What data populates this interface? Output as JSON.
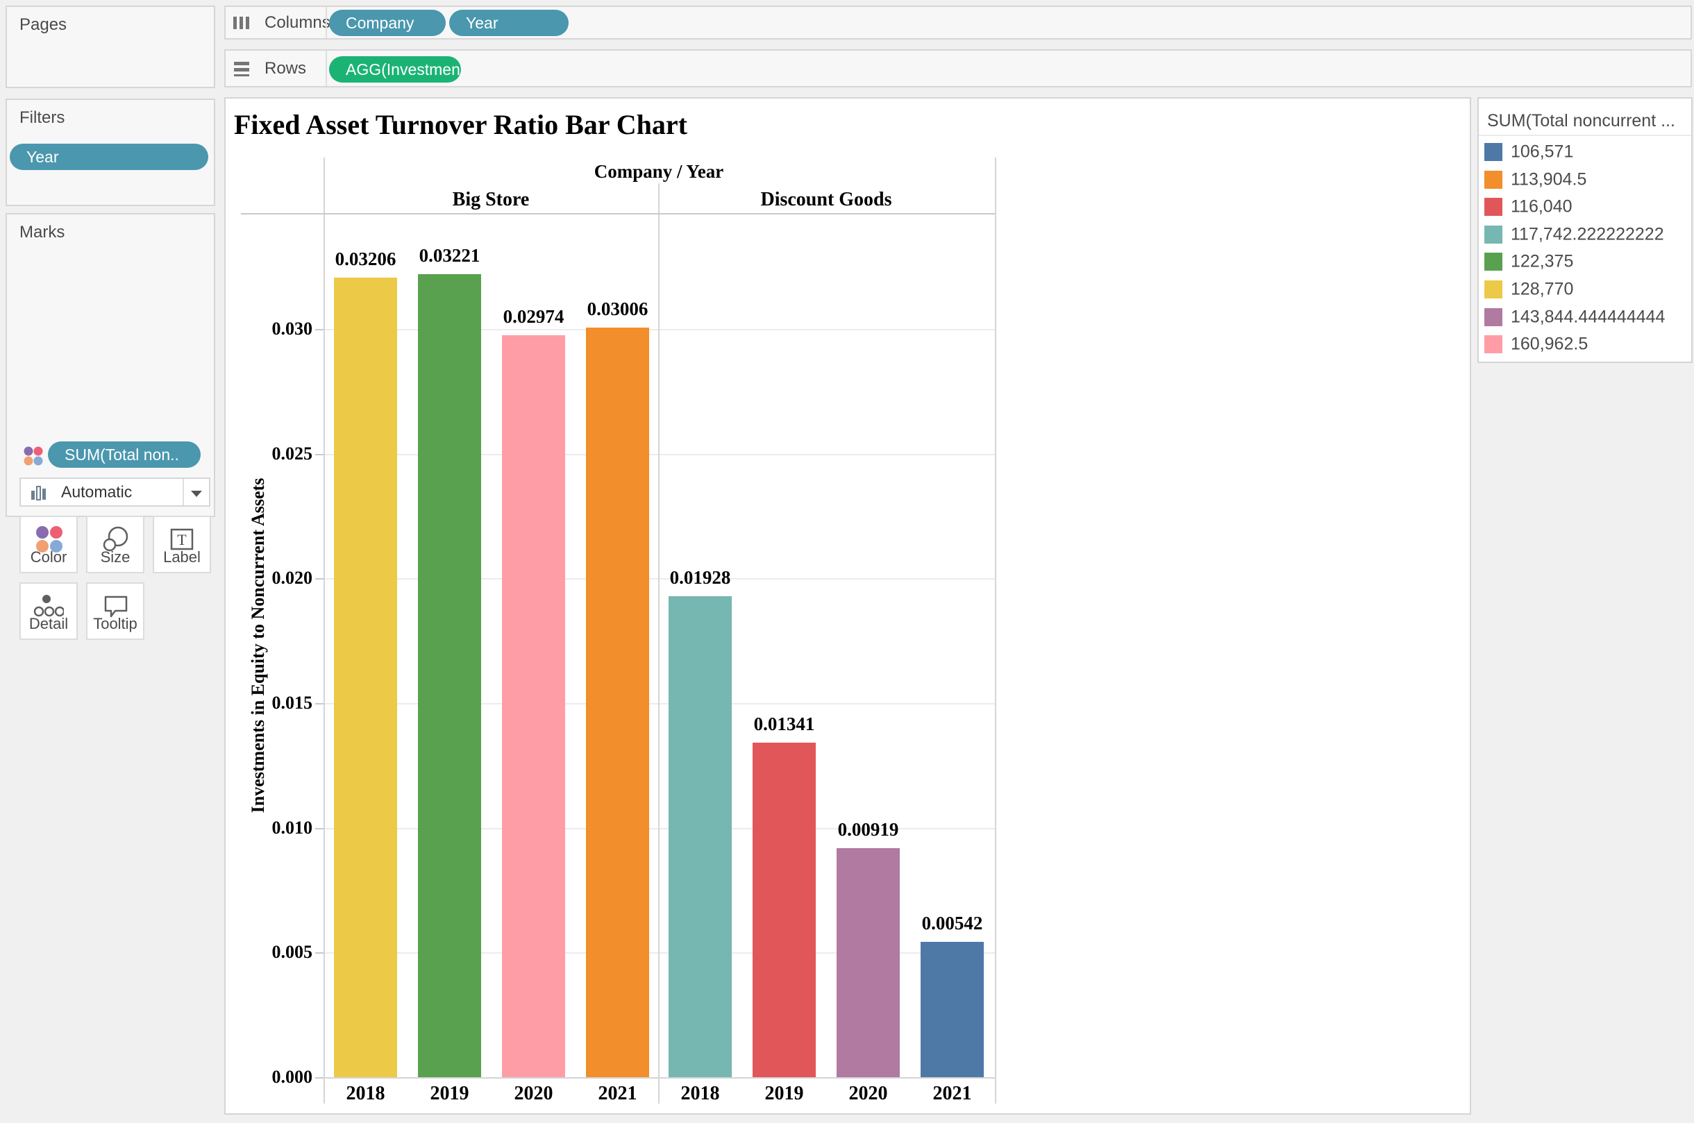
{
  "shelves": {
    "columns": {
      "label": "Columns",
      "pills": [
        {
          "text": "Company"
        },
        {
          "text": "Year"
        }
      ]
    },
    "rows": {
      "label": "Rows",
      "pills": [
        {
          "text": "AGG(Investments in E.."
        }
      ]
    }
  },
  "sidebar": {
    "pages": {
      "title": "Pages"
    },
    "filters": {
      "title": "Filters",
      "pills": [
        {
          "text": "Year"
        }
      ]
    },
    "marks": {
      "title": "Marks",
      "mark_type_label": "Automatic",
      "buttons": [
        {
          "label": "Color"
        },
        {
          "label": "Size"
        },
        {
          "label": "Label"
        },
        {
          "label": "Detail"
        },
        {
          "label": "Tooltip"
        }
      ],
      "pill": {
        "text": "SUM(Total non.."
      }
    }
  },
  "chart_data": {
    "type": "bar",
    "title": "Fixed Asset Turnover Ratio Bar Chart",
    "column_header": "Company / Year",
    "ylabel": "Investments in Equity to Noncurrent Assets",
    "xlabel": "",
    "y_ticks": [
      0.03,
      0.025,
      0.02,
      0.015,
      0.01,
      0.005,
      0.0
    ],
    "ylim": [
      0,
      0.0346
    ],
    "grid": true,
    "legend_position": "right",
    "categories": [
      "2018",
      "2019",
      "2020",
      "2021"
    ],
    "series": [
      {
        "name": "Big Store",
        "values": [
          0.03206,
          0.03221,
          0.02974,
          0.03006
        ],
        "labels": [
          "0.03206",
          "0.03221",
          "0.02974",
          "0.03006"
        ],
        "colors": [
          "#edc948",
          "#59a14f",
          "#ff9da7",
          "#f28e2b"
        ]
      },
      {
        "name": "Discount Goods",
        "values": [
          0.01928,
          0.01341,
          0.00919,
          0.00542
        ],
        "labels": [
          "0.01928",
          "0.01341",
          "0.00919",
          "0.00542"
        ],
        "colors": [
          "#76b7b2",
          "#e15759",
          "#b07aa1",
          "#4e79a7"
        ]
      }
    ]
  },
  "legend": {
    "title": "SUM(Total noncurrent ...",
    "items": [
      {
        "label": "106,571",
        "color": "#4e79a7"
      },
      {
        "label": "113,904.5",
        "color": "#f28e2b"
      },
      {
        "label": "116,040",
        "color": "#e15759"
      },
      {
        "label": "117,742.222222222",
        "color": "#76b7b2"
      },
      {
        "label": "122,375",
        "color": "#59a14f"
      },
      {
        "label": "128,770",
        "color": "#edc948"
      },
      {
        "label": "143,844.444444444",
        "color": "#b07aa1"
      },
      {
        "label": "160,962.5",
        "color": "#ff9da7"
      }
    ]
  },
  "colors": {
    "dimension_pill": "#4a97ae",
    "measure_pill": "#1bb374",
    "color_icon_dots": [
      "#8a6bad",
      "#ed5f73",
      "#f0a172",
      "#86aad5"
    ]
  }
}
